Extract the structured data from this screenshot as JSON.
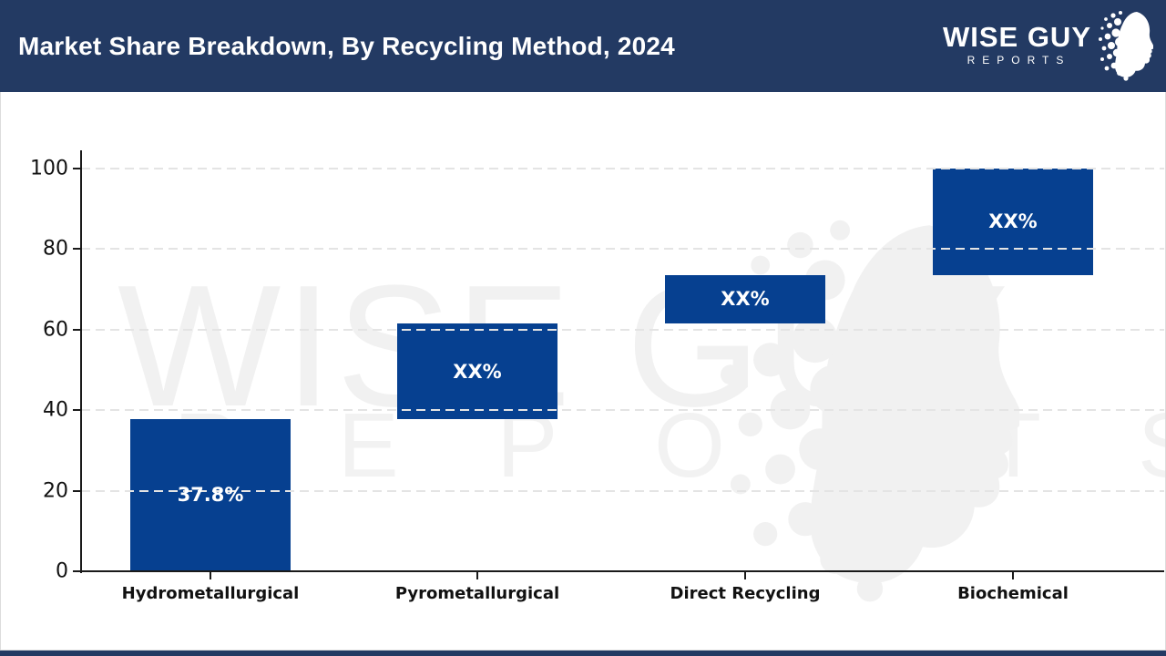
{
  "header": {
    "title": "Market Share Breakdown, By Recycling Method, 2024",
    "logo": {
      "line1": "WISE GUY",
      "line2": "REPORTS"
    }
  },
  "watermark": {
    "line1": "WISE GUY",
    "line2": "R E P O R T S"
  },
  "colors": {
    "header_bg": "#233a63",
    "bar": "#064090",
    "grid": "#e4e4e4",
    "axis": "#1a1a1a",
    "bar_label": "#ffffff",
    "watermark": "#f1f1f1"
  },
  "chart_data": {
    "type": "bar",
    "subtype": "waterfall",
    "title": "Market Share Breakdown, By Recycling Method, 2024",
    "categories": [
      "Hydrometallurgical",
      "Pyrometallurgical",
      "Direct Recycling",
      "Biochemical"
    ],
    "segments": [
      {
        "category": "Hydrometallurgical",
        "start": 0,
        "end": 37.8,
        "label": "37.8%"
      },
      {
        "category": "Pyrometallurgical",
        "start": 37.8,
        "end": 61.5,
        "label": "XX%"
      },
      {
        "category": "Direct Recycling",
        "start": 61.5,
        "end": 73.6,
        "label": "XX%"
      },
      {
        "category": "Biochemical",
        "start": 73.6,
        "end": 100,
        "label": "XX%"
      }
    ],
    "xlabel": "",
    "ylabel": "",
    "ylim": [
      0,
      100
    ],
    "yticks": [
      0,
      20,
      40,
      60,
      80,
      100
    ],
    "gridlines": "horizontal dashed at 20,40,60,80,100",
    "legend": "none"
  }
}
